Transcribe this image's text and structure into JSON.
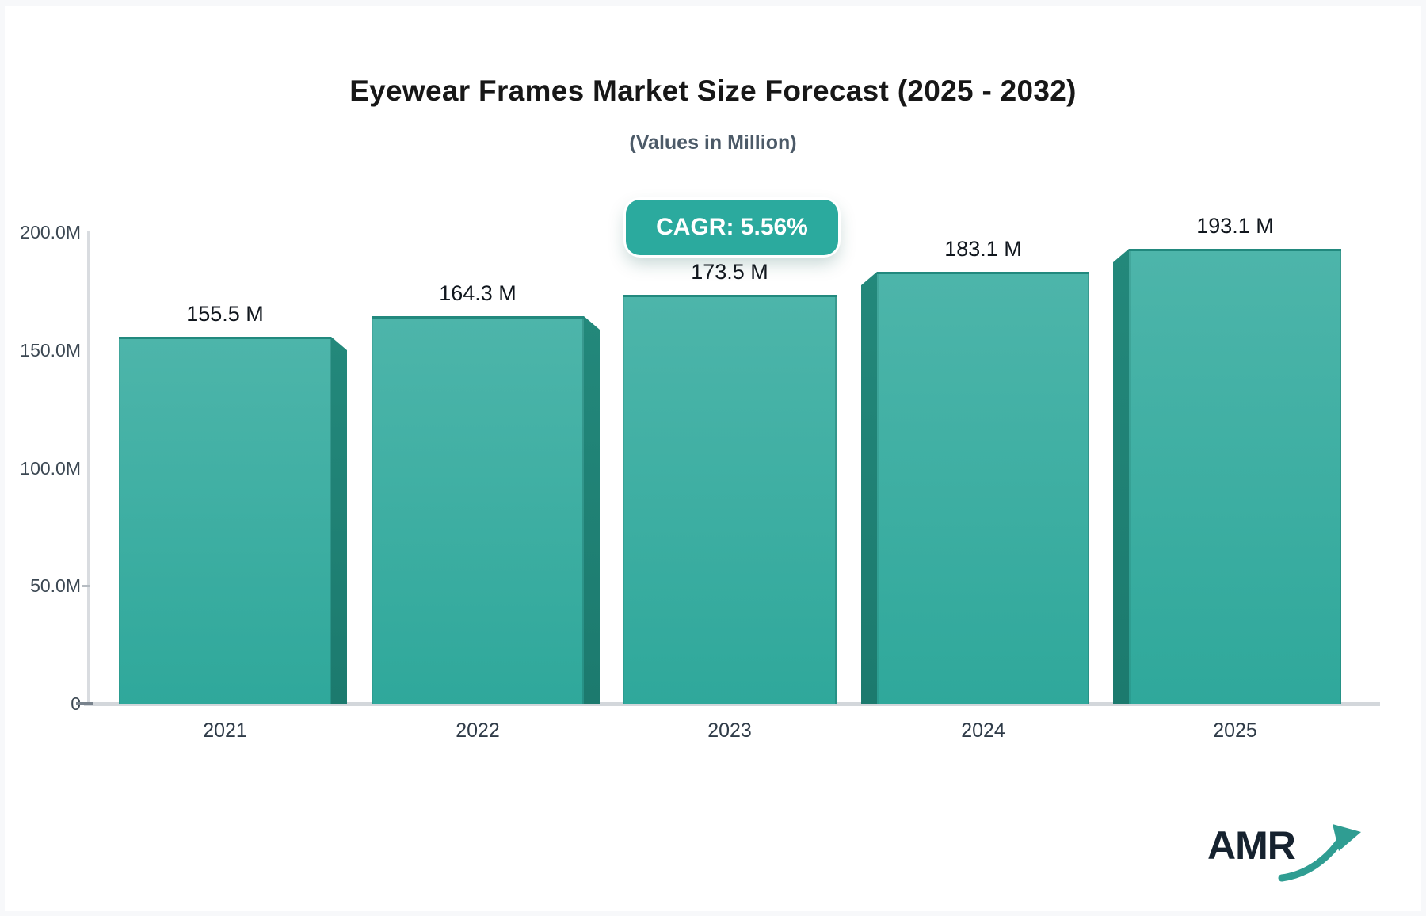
{
  "chart": {
    "title": "Eyewear Frames Market Size Forecast (2025 - 2032)",
    "subtitle": "(Values in Million)",
    "cagr_label": "CAGR: 5.56%"
  },
  "logo": {
    "text": "AMR"
  },
  "colors": {
    "bar_top": "#4db5aa",
    "bar_bottom": "#2fa89b",
    "bar_side_top": "#23887b",
    "bar_side_bottom": "#1c7a6e",
    "badge_bg": "#2baa9e",
    "axis_line": "#d9dce0",
    "axis_text": "#3c4853",
    "value_text": "#10161d",
    "logo_navy": "#16222f",
    "logo_teal": "#2f9d92"
  },
  "chart_data": {
    "type": "bar",
    "title": "Eyewear Frames Market Size Forecast (2025 - 2032)",
    "subtitle": "(Values in Million)",
    "categories": [
      "2021",
      "2022",
      "2023",
      "2024",
      "2025"
    ],
    "values": [
      155.5,
      164.3,
      173.5,
      183.1,
      193.1
    ],
    "value_labels": [
      "155.5 M",
      "164.3 M",
      "173.5 M",
      "183.1 M",
      "193.1 M"
    ],
    "unit": "Million",
    "annotation": "CAGR: 5.56%",
    "xlabel": "",
    "ylabel": "",
    "ylim": [
      0,
      200
    ],
    "y_tick_values": [
      0,
      50,
      100,
      150,
      200
    ],
    "y_tick_labels": [
      "0",
      "50.0M",
      "100.0M",
      "150.0M",
      "200.0M"
    ],
    "grid": false,
    "legend": false,
    "bar_color": "#3aada1",
    "bar_effect_3d": true
  }
}
